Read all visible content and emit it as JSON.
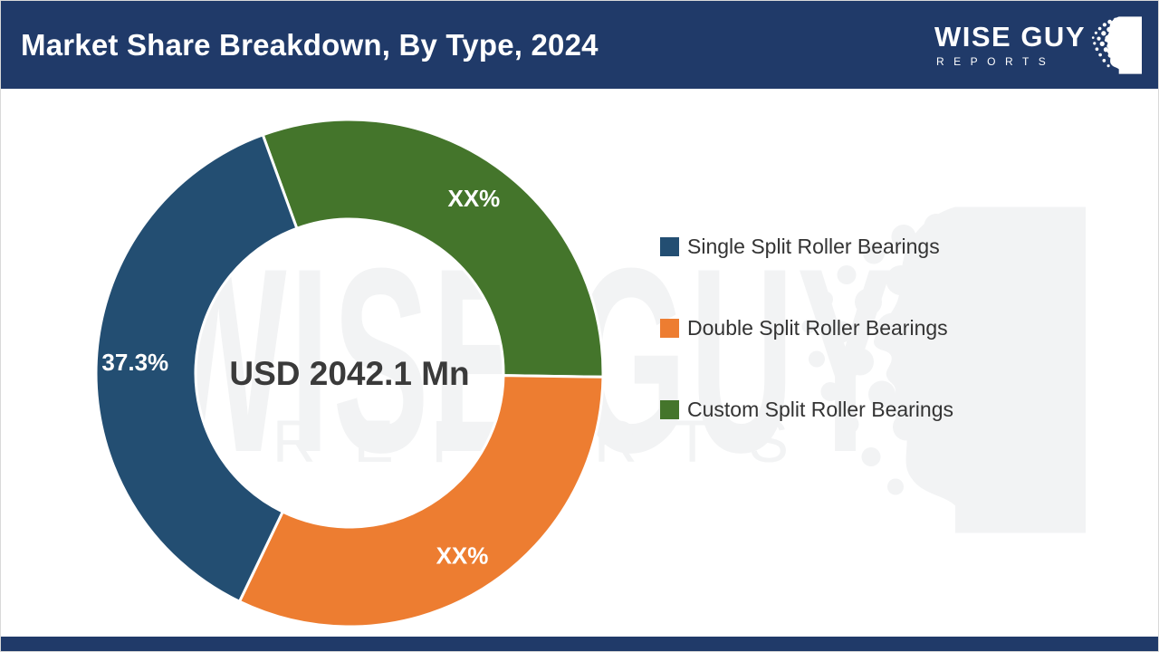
{
  "header": {
    "title": "Market Share Breakdown, By Type, 2024",
    "bg_color": "#203a69",
    "logo": {
      "wordmark": "WISE GUY",
      "subtext": "REPORTS"
    }
  },
  "chart_data": {
    "type": "pie",
    "subtype": "donut",
    "title": "Market Share Breakdown, By Type, 2024",
    "center_label": "USD 2042.1 Mn",
    "start_angle_deg": -20,
    "legend_position": "right",
    "series": [
      {
        "name": "Custom Split Roller Bearings",
        "value": 30.8,
        "display_label": "XX%",
        "color": "#44752B"
      },
      {
        "name": "Double Split Roller Bearings",
        "value": 31.9,
        "display_label": "XX%",
        "color": "#ED7D31"
      },
      {
        "name": "Single Split Roller Bearings",
        "value": 37.3,
        "display_label": "37.3%",
        "color": "#234E72"
      }
    ]
  },
  "legend": {
    "items": [
      {
        "label": "Single Split Roller Bearings",
        "color": "#234E72"
      },
      {
        "label": "Double Split Roller Bearings",
        "color": "#ED7D31"
      },
      {
        "label": "Custom Split Roller Bearings",
        "color": "#44752B"
      }
    ]
  },
  "watermark": {
    "wordmark": "WISE GUY",
    "subtext": "REPORTS"
  }
}
